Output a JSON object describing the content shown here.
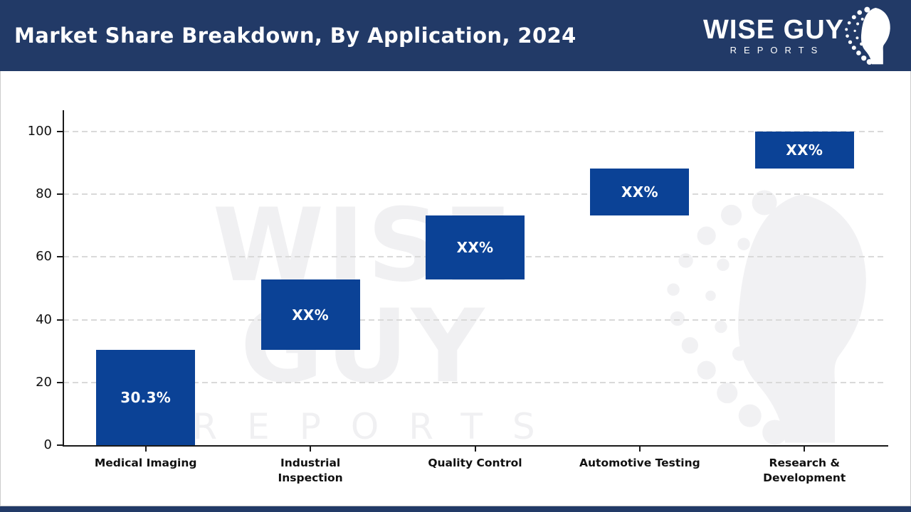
{
  "header": {
    "title": "Market Share Breakdown, By Application, 2024",
    "logo": {
      "line1": "WISE GUY",
      "line2": "REPORTS"
    }
  },
  "watermark": {
    "line1": "WISE GUY",
    "line2": "REPORTS"
  },
  "colors": {
    "header_bg": "#223A67",
    "bar": "#0B4296",
    "bar_label": "#FFFFFF",
    "axis": "#1A1A1A",
    "gridline": "#D9D9D9",
    "watermark": "#F0F0F2"
  },
  "chart_data": {
    "type": "bar",
    "subtype": "waterfall",
    "title": "Market Share Breakdown, By Application, 2024",
    "xlabel": "",
    "ylabel": "",
    "ylim": [
      0,
      100
    ],
    "grid": true,
    "yticks": [
      0,
      20,
      40,
      60,
      80,
      100
    ],
    "categories": [
      "Medical Imaging",
      "Industrial Inspection",
      "Quality Control",
      "Automotive Testing",
      "Research & Development"
    ],
    "tick_label_lines": [
      [
        "Medical Imaging"
      ],
      [
        "Industrial",
        "Inspection"
      ],
      [
        "Quality Control"
      ],
      [
        "Automotive Testing"
      ],
      [
        "Research &",
        "Development"
      ]
    ],
    "bars": [
      {
        "category": "Medical Imaging",
        "start": 0,
        "end": 30.3,
        "label": "30.3%"
      },
      {
        "category": "Industrial Inspection",
        "start": 30.3,
        "end": 52.8,
        "label": "XX%"
      },
      {
        "category": "Quality Control",
        "start": 52.8,
        "end": 73.2,
        "label": "XX%"
      },
      {
        "category": "Automotive Testing",
        "start": 73.2,
        "end": 88.3,
        "label": "XX%"
      },
      {
        "category": "Research & Development",
        "start": 88.3,
        "end": 100,
        "label": "XX%"
      }
    ]
  }
}
